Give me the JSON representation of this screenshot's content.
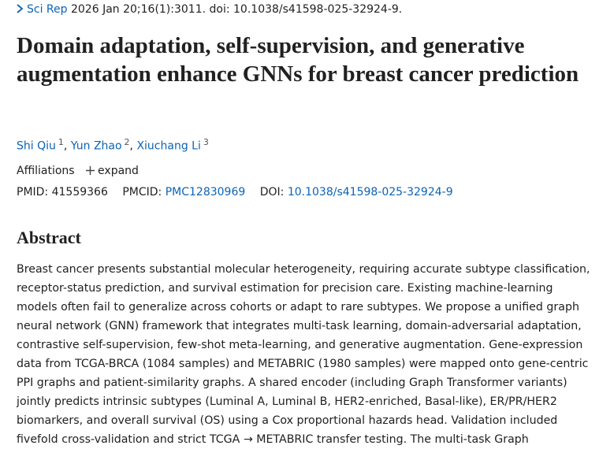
{
  "citation": {
    "journal": "Sci Rep",
    "details": "2026 Jan 20;16(1):3011. doi: 10.1038/s41598-025-32924-9."
  },
  "title": "Domain adaptation, self-supervision, and generative augmentation enhance GNNs for breast cancer prediction",
  "authors": [
    {
      "name": "Shi Qiu",
      "sup": "1"
    },
    {
      "name": "Yun Zhao",
      "sup": "2"
    },
    {
      "name": "Xiuchang Li",
      "sup": "3"
    }
  ],
  "affiliations": {
    "label": "Affiliations",
    "toggle": "expand"
  },
  "identifiers": {
    "pmid_label": "PMID:",
    "pmid": "41559366",
    "pmcid_label": "PMCID:",
    "pmcid": "PMC12830969",
    "doi_label": "DOI:",
    "doi": "10.1038/s41598-025-32924-9"
  },
  "abstract": {
    "heading": "Abstract",
    "lines": [
      "Breast cancer presents substantial molecular heterogeneity, requiring accurate subtype classification,",
      "receptor-status prediction, and survival estimation for precision care. Existing machine-learning",
      "models often fail to generalize across cohorts or adapt to rare subtypes. We propose a unified graph",
      "neural network (GNN) framework that integrates multi-task learning, domain-adversarial adaptation,",
      "contrastive self-supervision, few-shot meta-learning, and generative augmentation. Gene-expression",
      "data from TCGA-BRCA (1084 samples) and METABRIC (1980 samples) were mapped onto gene-centric",
      "PPI graphs and patient-similarity graphs. A shared encoder (including Graph Transformer variants)",
      "jointly predicts intrinsic subtypes (Luminal A, Luminal B, HER2-enriched, Basal-like), ER/PR/HER2",
      "biomarkers, and overall survival (OS) using a Cox proportional hazards head. Validation included",
      "fivefold cross-validation and strict TCGA → METABRIC transfer testing. The multi-task Graph"
    ]
  }
}
